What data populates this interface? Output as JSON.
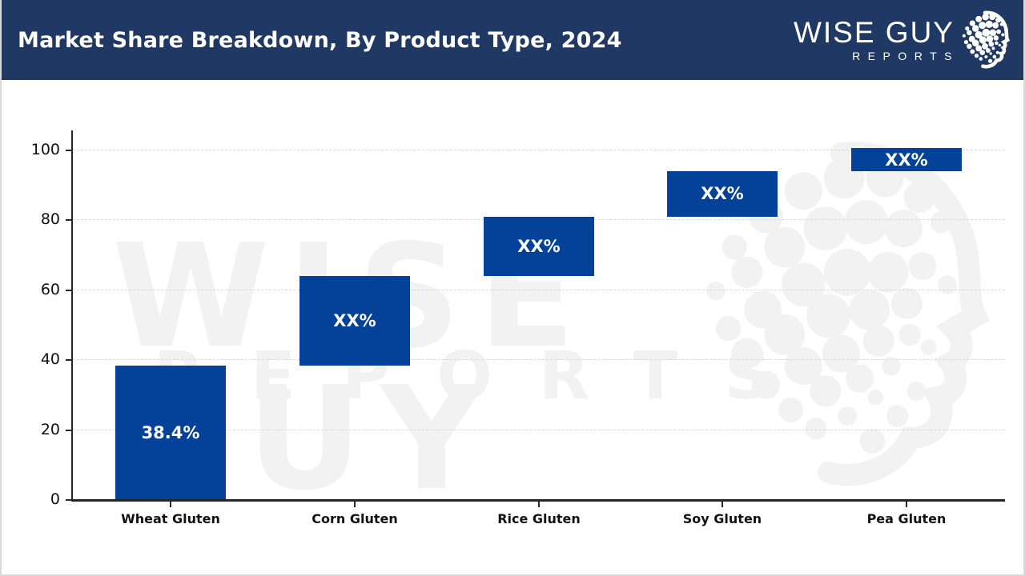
{
  "header": {
    "title": "Market Share Breakdown, By Product Type, 2024",
    "logo": {
      "name": "WISE GUY",
      "tagline": "REPORTS"
    }
  },
  "watermark": {
    "line1": "WISE GUY",
    "line2": "REPORTS"
  },
  "chart_data": {
    "type": "bar",
    "subtype": "waterfall",
    "title": "Market Share Breakdown, By Product Type, 2024",
    "categories": [
      "Wheat Gluten",
      "Corn Gluten",
      "Rice Gluten",
      "Soy Gluten",
      "Pea Gluten"
    ],
    "segments": [
      {
        "category": "Wheat Gluten",
        "start": 0,
        "end": 38.4,
        "label": "38.4%"
      },
      {
        "category": "Corn Gluten",
        "start": 38.4,
        "end": 64,
        "label": "XX%"
      },
      {
        "category": "Rice Gluten",
        "start": 64,
        "end": 81,
        "label": "XX%"
      },
      {
        "category": "Soy Gluten",
        "start": 81,
        "end": 94,
        "label": "XX%"
      },
      {
        "category": "Pea Gluten",
        "start": 94,
        "end": 100.5,
        "label": "XX%"
      }
    ],
    "xlabel": "",
    "ylabel": "",
    "yticks": [
      0,
      20,
      40,
      60,
      80,
      100
    ],
    "ylim": [
      0,
      105.5
    ],
    "grid": true,
    "legend": false,
    "colors": {
      "bar": "#04429A",
      "bar_label": "#ffffff",
      "header_bg": "#203864",
      "axis": "#262626",
      "gridline": "#d8d8d8",
      "watermark": "#f2f2f2"
    }
  }
}
